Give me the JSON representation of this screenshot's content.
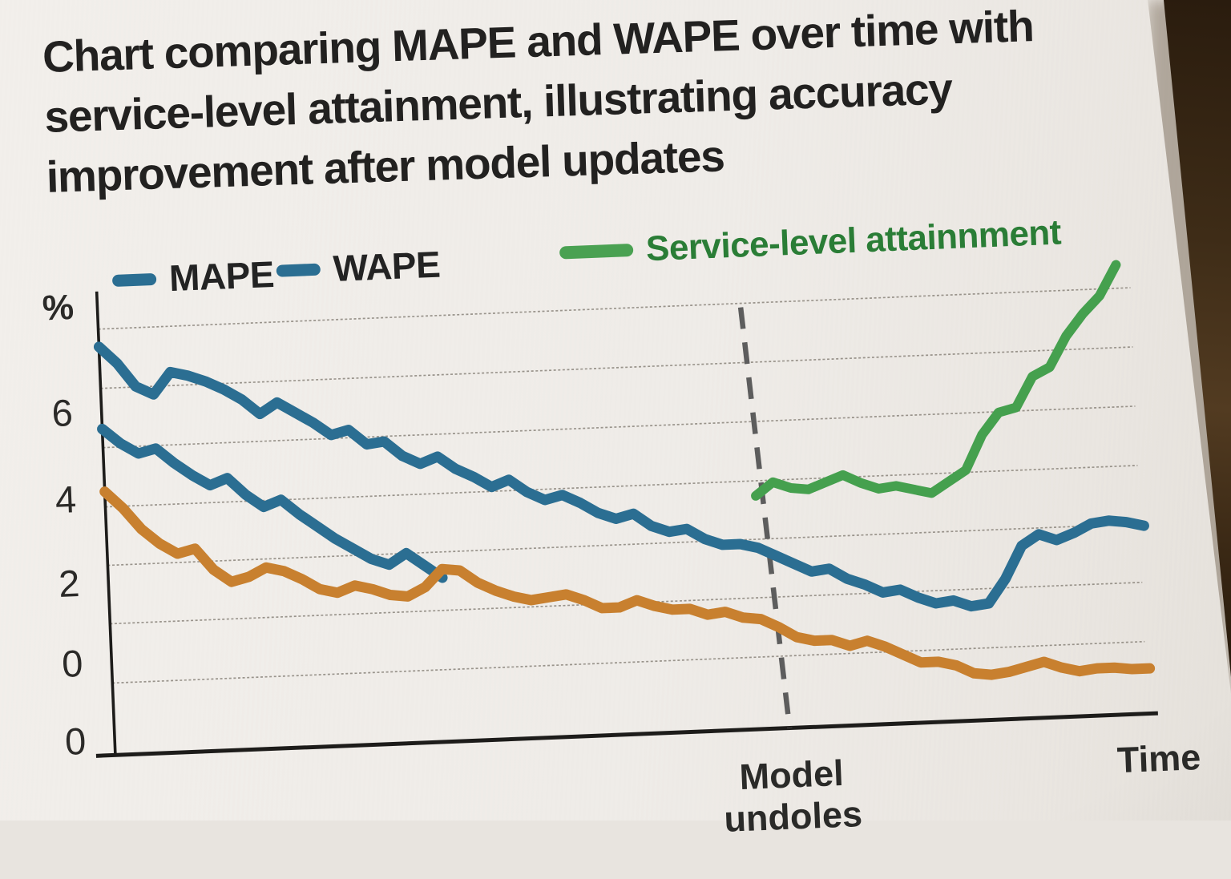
{
  "title": {
    "lines": [
      "Chart comparing MAPE and WAPE over time with",
      "service-level attainment, illustrating accuracy",
      "improvement after model updates"
    ]
  },
  "legend": {
    "items": [
      {
        "label": "MAPE",
        "swatch_color": "#2b6e92",
        "label_color": "#232323"
      },
      {
        "label": "WAPE",
        "swatch_color": "#2b6e92",
        "label_color": "#232323"
      },
      {
        "label": "Service-level attainnment",
        "swatch_color": "#4aa152",
        "label_color": "#2a7d36"
      }
    ]
  },
  "axes": {
    "y_unit_label": "%",
    "y_ticks": [
      "6",
      "4",
      "2",
      "0",
      "0"
    ],
    "x_label": "Time",
    "event_label": [
      "Model",
      "undoles"
    ]
  },
  "chart_data": {
    "type": "line",
    "x_points": 60,
    "xlabel": "Time",
    "ylabel": "%",
    "y_tick_labels_as_printed": [
      "6",
      "4",
      "2",
      "0",
      "0"
    ],
    "grid": "7 faint horizontal gridlines, evenly spaced, not aligned to tick labels",
    "legend_position": "top, horizontal row",
    "event_line": {
      "label": "Model undoles",
      "style": "vertical dashed gray line",
      "position_fraction": 0.63
    },
    "series": [
      {
        "name": "MAPE",
        "color": "#2b6e92",
        "start_index": 0,
        "values": [
          7.35,
          6.95,
          6.4,
          6.2,
          6.7,
          6.6,
          6.45,
          6.25,
          6.0,
          5.65,
          5.9,
          5.65,
          5.4,
          5.1,
          5.2,
          4.85,
          4.9,
          4.55,
          4.35,
          4.5,
          4.2,
          4.0,
          3.75,
          3.9,
          3.6,
          3.4,
          3.5,
          3.3,
          3.05,
          2.9,
          3.0,
          2.7,
          2.55,
          2.6,
          2.35,
          2.2,
          2.2,
          2.1,
          1.9,
          1.7,
          1.5,
          1.55,
          1.3,
          1.15,
          0.95,
          1.0,
          0.8,
          0.65,
          0.7,
          0.55,
          0.6,
          1.15,
          1.9,
          2.15,
          2.0,
          2.15,
          2.35,
          2.4,
          2.35,
          2.25
        ]
      },
      {
        "name": "WAPE",
        "color": "#2b6e92",
        "start_index": 0,
        "note": "blue line segment that descends and ends beneath the orange line mid-left of the plot",
        "values": [
          5.45,
          5.1,
          4.85,
          4.95,
          4.6,
          4.3,
          4.05,
          4.2,
          3.8,
          3.5,
          3.65,
          3.3,
          3.0,
          2.7,
          2.45,
          2.2,
          2.05,
          2.3,
          2.0,
          1.7
        ]
      },
      {
        "name": "unlabeled orange line",
        "color": "#c8802f",
        "start_index": 0,
        "values": [
          4.0,
          3.6,
          3.1,
          2.75,
          2.5,
          2.6,
          2.1,
          1.8,
          1.9,
          2.1,
          2.0,
          1.8,
          1.55,
          1.45,
          1.6,
          1.5,
          1.35,
          1.3,
          1.5,
          1.9,
          1.85,
          1.55,
          1.35,
          1.2,
          1.1,
          1.15,
          1.2,
          1.05,
          0.85,
          0.85,
          1.0,
          0.85,
          0.75,
          0.75,
          0.6,
          0.65,
          0.5,
          0.45,
          0.25,
          0.0,
          -0.1,
          -0.1,
          -0.25,
          -0.15,
          -0.3,
          -0.5,
          -0.7,
          -0.7,
          -0.8,
          -1.0,
          -1.05,
          -1.0,
          -0.9,
          -0.8,
          -0.95,
          -1.05,
          -1.0,
          -1.0,
          -1.05,
          -1.05
        ]
      },
      {
        "name": "Service-level attainnment",
        "color": "#45a04e",
        "start_index": 37,
        "note": "starts at the dashed model-update line, flat near 3.5 then stepped rise",
        "values": [
          3.3,
          3.6,
          3.45,
          3.4,
          3.55,
          3.7,
          3.5,
          3.35,
          3.4,
          3.3,
          3.2,
          3.45,
          3.7,
          4.5,
          5.0,
          5.1,
          5.8,
          6.0,
          6.7,
          7.2,
          7.6,
          8.3
        ]
      }
    ]
  }
}
